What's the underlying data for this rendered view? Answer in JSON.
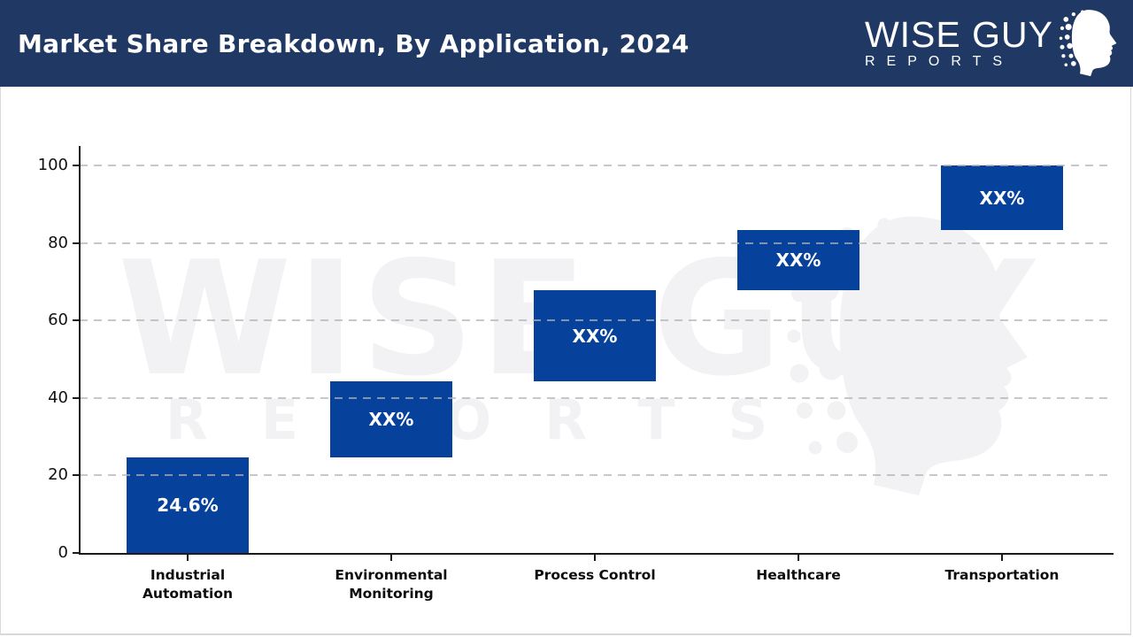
{
  "header": {
    "title": "Market Share Breakdown, By Application, 2024",
    "logo": {
      "line1": "WISE GUY",
      "line2": "REPORTS"
    }
  },
  "watermark": {
    "line1": "WISE GUY",
    "line2": "REPORTS"
  },
  "colors": {
    "header_bg": "#1f3864",
    "bar": "#06429b",
    "bar_label": "#ffffff",
    "axis": "#1a1a1a",
    "grid": "#d2d2d2",
    "watermark": "#f2f2f4",
    "canvas_border": "#d9d9d9"
  },
  "chart_data": {
    "type": "bar",
    "variant": "waterfall",
    "title": "Market Share Breakdown, By Application, 2024",
    "xlabel": "",
    "ylabel": "",
    "categories": [
      "Industrial Automation",
      "Environmental Monitoring",
      "Process Control",
      "Healthcare",
      "Transportation"
    ],
    "segments": [
      {
        "category": "Industrial Automation",
        "start": 0,
        "end": 24.6,
        "value": 24.6,
        "label": "24.6%"
      },
      {
        "category": "Environmental Monitoring",
        "start": 24.6,
        "end": 44.4,
        "value": 19.8,
        "label": "XX%"
      },
      {
        "category": "Process Control",
        "start": 44.4,
        "end": 67.7,
        "value": 23.3,
        "label": "XX%"
      },
      {
        "category": "Healthcare",
        "start": 67.7,
        "end": 83.3,
        "value": 15.6,
        "label": "XX%"
      },
      {
        "category": "Transportation",
        "start": 83.3,
        "end": 100,
        "value": 16.7,
        "label": "XX%"
      }
    ],
    "y_ticks": [
      0,
      20,
      40,
      60,
      80,
      100
    ],
    "ylim": [
      0,
      105
    ],
    "grid": "horizontal-dashed",
    "legend": "none"
  }
}
